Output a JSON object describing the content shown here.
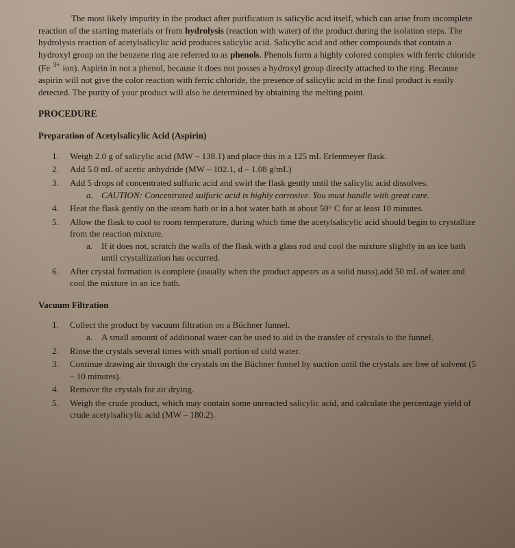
{
  "intro": {
    "line1a": "The most likely impurity in the product after purification is salicylic acid itself, which can arise from incomplete reaction of the starting materials or from ",
    "bold_hydrolysis": "hydrolysis",
    "line1b": " (reaction with water) of the product during the isolation steps. The hydrolysis reaction of acetylsalicylic acid produces salicylic acid.  Salicylic acid and other compounds that contain a hydroxyl group on the benzene ring are referred to as ",
    "bold_phenols": "phenols",
    "line1c": ".  Phenols form a highly colored complex with ferric chloride (Fe ",
    "sup3": "3+",
    "line1d": " ion). Aspirin in not a phenol, because it does not posses a hydroxyl group directly attached to the ring.  Because aspirin will not give the color reaction with ferric chloride, the presence of salicylic acid in the final product is easily detected.  The purity of your product will also be determined by obtaining the melting point."
  },
  "headings": {
    "procedure": "PROCEDURE",
    "prep": "Preparation of Acetylsalicylic Acid (Aspirin)",
    "vacuum": "Vacuum Filtration"
  },
  "prep_steps": {
    "s1": "Weigh 2.0 g of salicylic acid (MW – 138.1) and place this in a 125 mL Erlenmeyer flask.",
    "s2": "Add 5.0 mL of acetic anhydride (MW – 102.1, d – 1.08 g/mL)",
    "s3": "Add 5 drops of concentrated sulfuric acid and swirl the flask gently until the salicylic acid dissolves.",
    "s3a_italic": "CAUTION: Concentrated sulfuric acid is highly corrosive. You must handle with great care.",
    "s4": "Heat the flask gently on the steam bath or in a hot water bath at about 50° C for at least 10 minutes.",
    "s5": "Allow the flask to cool to room temperature, during which time the acetylsalicylic acid should begin to crystallize from the reaction mixture.",
    "s5a": "If it does not, scratch the walls of the flask with a glass rod and cool the mixture slightly in an ice bath until crystallization has occurred.",
    "s6": "After crystal formation is complete (usually when the product appears as a solid mass),add 50 mL of water and cool the mixture in an ice bath."
  },
  "vacuum_steps": {
    "v1": "Collect the product by vacuum filtration on a Büchner funnel.",
    "v1a": "A small amount of additional water can be used to aid in the transfer of crystals to the funnel.",
    "v2": "Rinse the crystals several times  with small portion of cold water.",
    "v3": "Continue drawing air through the crystals on the Büchner funnel by suction until the crystals are free of solvent (5 – 10 minutes).",
    "v4": "Remove the crystals for air drying.",
    "v5": "Weigh the crude product, which may contain some unreacted salicylic acid, and calculate the percentage yield of crude acetylsalicylic acid (MW – 180.2)."
  },
  "numbers": {
    "n1": "1.",
    "n2": "2.",
    "n3": "3.",
    "n4": "4.",
    "n5": "5.",
    "n6": "6.",
    "a": "a."
  }
}
